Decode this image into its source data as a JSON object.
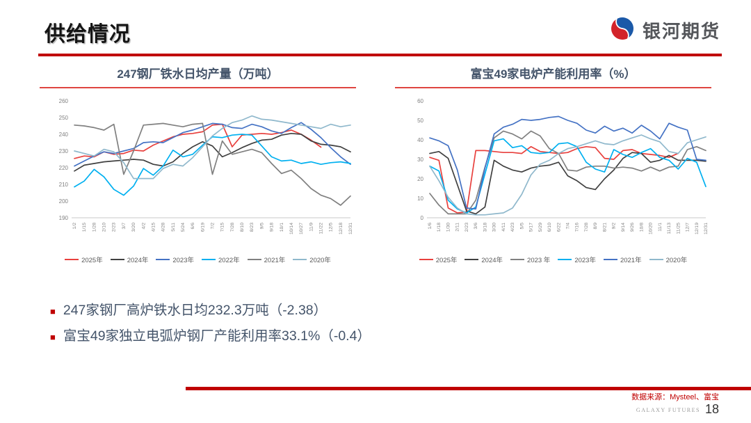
{
  "slide": {
    "title": "供给情况",
    "logo_text": "银河期货",
    "bullets": [
      "247家钢厂高炉铁水日均232.3万吨（-2.38）",
      "富宝49家独立电弧炉钢厂产能利用率33.1%（-0.4）"
    ],
    "footer": {
      "source": "数据来源：Mysteel、富宝",
      "brand": "GALAXY FUTURES",
      "page": "18"
    }
  },
  "colors": {
    "accent_red": "#C00000",
    "chart_title": "#44546A",
    "axis_label": "#7F7F7F",
    "legend_text": "#595959"
  },
  "chart_data": [
    {
      "type": "line",
      "title": "247钢厂铁水日均产量（万吨）",
      "ylim": [
        190,
        260
      ],
      "ytick_step": 10,
      "grid": false,
      "legend_position": "bottom",
      "x_labels": [
        "1/2",
        "1/15",
        "1/28",
        "2/10",
        "2/23",
        "3/7",
        "3/20",
        "4/2",
        "4/15",
        "4/28",
        "5/11",
        "5/24",
        "6/6",
        "6/19",
        "7/2",
        "7/15",
        "7/28",
        "8/10",
        "8/23",
        "9/5",
        "9/18",
        "10/1",
        "10/14",
        "10/27",
        "11/9",
        "11/22",
        "12/5",
        "12/18",
        "12/31"
      ],
      "series": [
        {
          "name": "2025年",
          "color": "#E8403D",
          "values": [
            225.5,
            227,
            226.5,
            229.5,
            228,
            228.5,
            230.5,
            230,
            233.5,
            236,
            238.5,
            240,
            240.5,
            241.5,
            245.5,
            246,
            232.5,
            239.5,
            240,
            240.5,
            240,
            241,
            242.5,
            240,
            236.5,
            232.3,
            null,
            null,
            null
          ]
        },
        {
          "name": "2024年",
          "color": "#404040",
          "values": [
            218,
            221.5,
            222.5,
            223.5,
            224,
            224.5,
            225,
            224.5,
            222,
            221,
            223.5,
            228.5,
            232.5,
            235.5,
            233,
            226.5,
            229,
            232,
            234.5,
            236.5,
            237,
            239.5,
            240.5,
            240,
            236,
            234,
            233.5,
            232.5,
            229.5
          ]
        },
        {
          "name": "2023年",
          "color": "#4472C4",
          "values": [
            221,
            224,
            227,
            229.5,
            228.5,
            230,
            231.5,
            235,
            235.5,
            235,
            238,
            241,
            242.5,
            244.5,
            246.5,
            246,
            244,
            243.5,
            246,
            244.5,
            242,
            240.5,
            244,
            247,
            243,
            238,
            232,
            226.5,
            222
          ]
        },
        {
          "name": "2022年",
          "color": "#00B0F0",
          "values": [
            208.5,
            212,
            219,
            214.5,
            207,
            203.5,
            209,
            219.5,
            215.5,
            221,
            230.5,
            226.5,
            228,
            233.5,
            238.5,
            238,
            239.5,
            240,
            239.5,
            233,
            226.5,
            224,
            224.5,
            222.5,
            223.5,
            222,
            223,
            223.5,
            222.5
          ]
        },
        {
          "name": "2021年",
          "color": "#808080",
          "values": [
            245.5,
            245,
            244,
            242.5,
            246,
            216,
            230,
            245.5,
            246,
            246.5,
            245.5,
            244.5,
            246,
            246.5,
            216,
            236,
            228,
            229.5,
            231,
            229,
            222.5,
            216.5,
            218.5,
            213.5,
            207.5,
            203.5,
            201.5,
            197.5,
            203
          ]
        },
        {
          "name": "2020年",
          "color": "#8FB8CC",
          "values": [
            230,
            228.5,
            227,
            231,
            229.5,
            223,
            213.5,
            213.5,
            213.5,
            219.5,
            222,
            221,
            226,
            232.5,
            239,
            243.5,
            247,
            248.5,
            251,
            249,
            248.5,
            247.5,
            246.5,
            245.5,
            244.5,
            243.5,
            246,
            244.5,
            245.5
          ]
        }
      ]
    },
    {
      "type": "line",
      "title": "富宝49家电炉产能利用率（%）",
      "ylim": [
        0,
        60
      ],
      "ytick_step": 10,
      "grid": false,
      "legend_position": "bottom",
      "x_labels": [
        "1/6",
        "1/18",
        "1/30",
        "2/11",
        "2/23",
        "3/6",
        "3/18",
        "3/30",
        "4/11",
        "4/23",
        "5/5",
        "5/17",
        "5/29",
        "6/10",
        "6/22",
        "7/4",
        "7/16",
        "7/28",
        "8/9",
        "8/21",
        "9/2",
        "9/14",
        "9/26",
        "10/8",
        "10/20",
        "11/1",
        "11/13",
        "11/25",
        "12/7",
        "12/19",
        "12/31"
      ],
      "series": [
        {
          "name": "2025年",
          "color": "#E8403D",
          "values": [
            31,
            29.5,
            5,
            2.5,
            3,
            34.5,
            34.5,
            34,
            33.5,
            33.5,
            33,
            36.5,
            34,
            33.5,
            33,
            33.5,
            35.5,
            36.5,
            36,
            30.5,
            30,
            34.5,
            35,
            33,
            32.5,
            32,
            31,
            33.1,
            null,
            null,
            null
          ]
        },
        {
          "name": "2024年",
          "color": "#404040",
          "values": [
            33,
            34,
            30.5,
            17,
            3.5,
            2,
            5.5,
            29.5,
            26.5,
            24.5,
            23.5,
            25.5,
            26.5,
            27,
            28.5,
            21.5,
            19,
            15.5,
            14.5,
            20,
            24.5,
            30.5,
            33.5,
            33,
            28.5,
            29.5,
            32,
            29.5,
            29.5,
            29.5,
            29
          ]
        },
        {
          "name": "2023 年",
          "color": "#808080",
          "values": [
            12.5,
            6.5,
            2,
            2,
            2,
            9,
            26,
            41,
            44.5,
            43,
            40.5,
            44.5,
            42,
            35.5,
            33,
            24.5,
            24,
            26,
            26.5,
            26.5,
            25.5,
            26,
            25.5,
            24,
            26,
            24,
            26,
            26.5,
            35,
            36.5,
            34.5
          ]
        },
        {
          "name": "2023年",
          "color": "#00B0F0",
          "values": [
            26.5,
            24,
            9,
            4.5,
            2.5,
            5.5,
            22.5,
            39.5,
            40.5,
            36,
            37,
            33.5,
            33,
            33.5,
            38,
            38.5,
            36.5,
            28.5,
            25,
            23.5,
            35,
            32.5,
            31,
            33.5,
            35.5,
            31,
            29.5,
            25,
            30.5,
            28.5,
            16
          ]
        },
        {
          "name": "2021年",
          "color": "#4472C4",
          "values": [
            41,
            39.5,
            37,
            24.5,
            5,
            4.5,
            25.5,
            43,
            46.5,
            48,
            50.5,
            50,
            50.5,
            51.5,
            52,
            50,
            48.5,
            45,
            43.5,
            47,
            44.5,
            46,
            43.5,
            47.5,
            44.5,
            40.5,
            48.5,
            46.5,
            45,
            30,
            29.5
          ]
        },
        {
          "name": "2020年",
          "color": "#8FB8CC",
          "values": [
            26.5,
            19,
            10.5,
            5,
            2,
            1.5,
            1.5,
            2,
            2.5,
            5,
            12,
            22,
            27.5,
            29.5,
            33,
            35.5,
            36.5,
            38,
            39.5,
            38,
            37.5,
            39.5,
            41,
            42.5,
            40.5,
            39,
            34,
            33,
            38.5,
            40,
            41.5
          ]
        }
      ]
    }
  ]
}
